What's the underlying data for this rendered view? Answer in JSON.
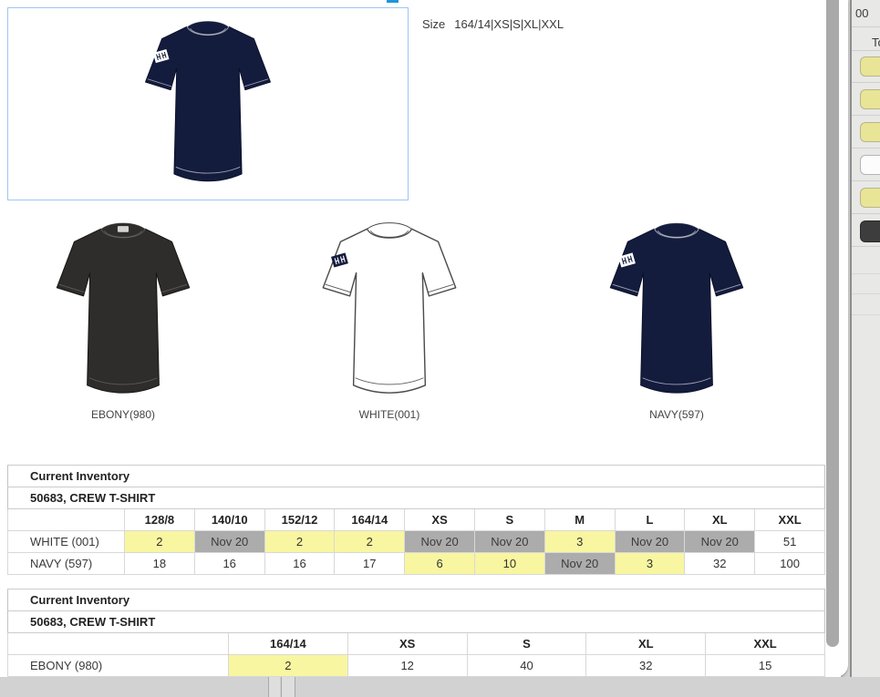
{
  "theme": {
    "highlight_yellow": "#f8f6a0",
    "highlight_gray": "#acacac",
    "image_border_blue": "#9ec5f4",
    "heading_fragment_blue": "#1e96d8",
    "navy": "#141c3e",
    "panel_bg": "#e8e8e6",
    "page_bg": "#d2d2d2"
  },
  "header": {
    "size_label": "Size",
    "size_value": "164/14|XS|S|XL|XXL"
  },
  "main_image": {
    "color_name": "NAVY",
    "fill": "#141c3e",
    "stroke": "#0a1028",
    "logo": "hh-white"
  },
  "swatches": [
    {
      "label": "EBONY(980)",
      "fill": "#2e2d2b",
      "stroke": "#171614",
      "logo": "tag"
    },
    {
      "label": "WHITE(001)",
      "fill": "#ffffff",
      "stroke": "#4b4b4b",
      "logo": "hh-navy"
    },
    {
      "label": "NAVY(597)",
      "fill": "#141c3e",
      "stroke": "#0a1028",
      "logo": "hh-white"
    }
  ],
  "inventory_tables": [
    {
      "title": "Current Inventory",
      "product": "50683, CREW T-SHIRT",
      "columns": [
        "128/8",
        "140/10",
        "152/12",
        "164/14",
        "XS",
        "S",
        "M",
        "L",
        "XL",
        "XXL"
      ],
      "rows": [
        {
          "label": "WHITE (001)",
          "cells": [
            {
              "v": "2",
              "hl": "yellow"
            },
            {
              "v": "Nov 20",
              "hl": "gray"
            },
            {
              "v": "2",
              "hl": "yellow"
            },
            {
              "v": "2",
              "hl": "yellow"
            },
            {
              "v": "Nov 20",
              "hl": "gray"
            },
            {
              "v": "Nov 20",
              "hl": "gray"
            },
            {
              "v": "3",
              "hl": "yellow"
            },
            {
              "v": "Nov 20",
              "hl": "gray"
            },
            {
              "v": "Nov 20",
              "hl": "gray"
            },
            {
              "v": "51",
              "hl": "none"
            }
          ]
        },
        {
          "label": "NAVY (597)",
          "cells": [
            {
              "v": "18",
              "hl": "none"
            },
            {
              "v": "16",
              "hl": "none"
            },
            {
              "v": "16",
              "hl": "none"
            },
            {
              "v": "17",
              "hl": "none"
            },
            {
              "v": "6",
              "hl": "yellow"
            },
            {
              "v": "10",
              "hl": "yellow"
            },
            {
              "v": "Nov 20",
              "hl": "gray"
            },
            {
              "v": "3",
              "hl": "yellow"
            },
            {
              "v": "32",
              "hl": "none"
            },
            {
              "v": "100",
              "hl": "none"
            }
          ]
        }
      ]
    },
    {
      "title": "Current Inventory",
      "product": "50683, CREW T-SHIRT",
      "columns": [
        "164/14",
        "XS",
        "S",
        "XL",
        "XXL"
      ],
      "rows": [
        {
          "label": "EBONY (980)",
          "cells": [
            {
              "v": "2",
              "hl": "yellow"
            },
            {
              "v": "12",
              "hl": "none"
            },
            {
              "v": "40",
              "hl": "none"
            },
            {
              "v": "32",
              "hl": "none"
            },
            {
              "v": "15",
              "hl": "none"
            }
          ]
        }
      ]
    }
  ],
  "side_panel": {
    "truncated_value": "00",
    "truncated_label": "To",
    "fields": [
      {
        "type": "yellow"
      },
      {
        "type": "yellow"
      },
      {
        "type": "yellow"
      },
      {
        "type": "white"
      },
      {
        "type": "yellow"
      },
      {
        "type": "dark"
      }
    ]
  }
}
